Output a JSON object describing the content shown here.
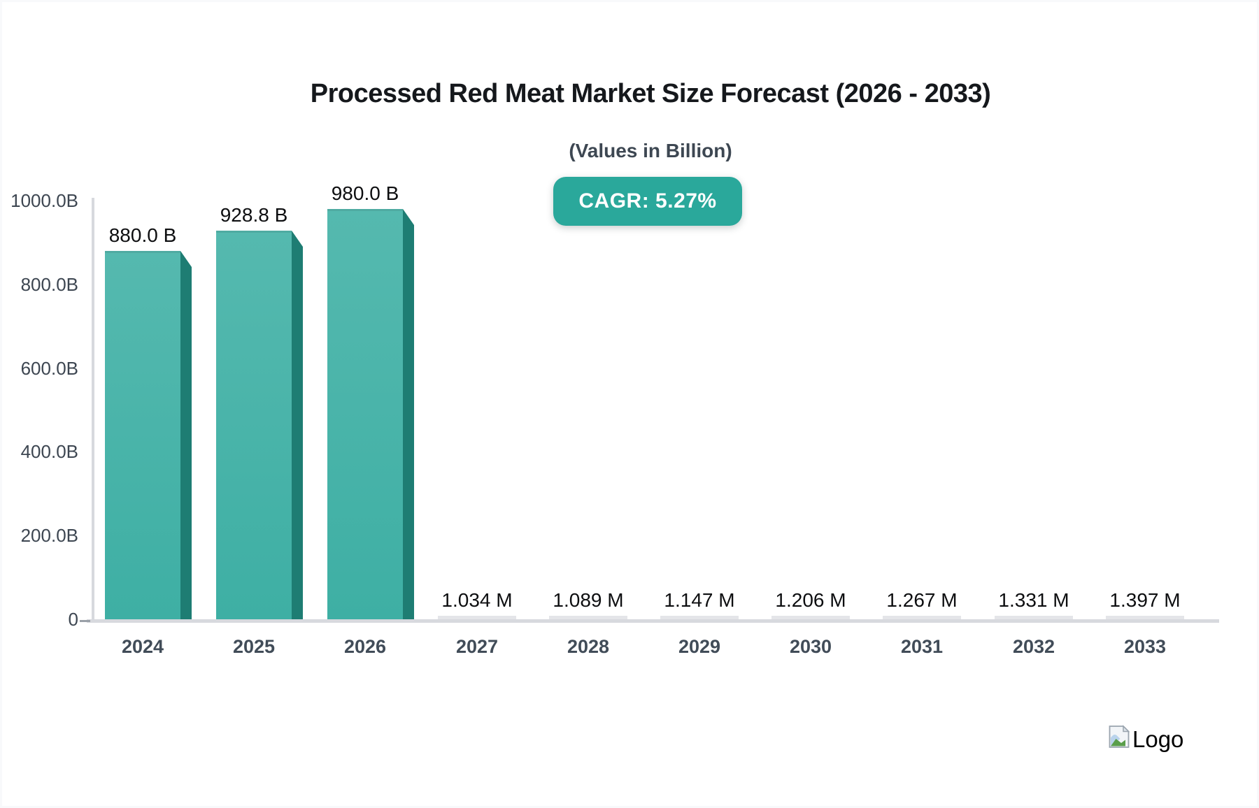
{
  "logo": {
    "alt_text": "Logo"
  },
  "chart_data": {
    "type": "bar",
    "title": "Processed Red Meat Market Size Forecast (2026 - 2033)",
    "subtitle": "(Values in Billion)",
    "annotation": "CAGR: 5.27%",
    "unit_note": "Values in Billion",
    "ylim": [
      0,
      1000
    ],
    "grid": "off",
    "legend": "none",
    "y_ticks": [
      {
        "label": "1000.0B",
        "value": 1000
      },
      {
        "label": "800.0B",
        "value": 800
      },
      {
        "label": "600.0B",
        "value": 600
      },
      {
        "label": "400.0B",
        "value": 400
      },
      {
        "label": "200.0B",
        "value": 200
      },
      {
        "label": "0",
        "value": 0
      }
    ],
    "categories": [
      "2024",
      "2025",
      "2026",
      "2027",
      "2028",
      "2029",
      "2030",
      "2031",
      "2032",
      "2033"
    ],
    "points": [
      {
        "year": "2024",
        "value": 880.0,
        "unit": "B",
        "display": "880.0 B"
      },
      {
        "year": "2025",
        "value": 928.8,
        "unit": "B",
        "display": "928.8 B"
      },
      {
        "year": "2026",
        "value": 980.0,
        "unit": "B",
        "display": "980.0 B"
      },
      {
        "year": "2027",
        "value": 1.034,
        "unit": "M",
        "display": "1.034 M"
      },
      {
        "year": "2028",
        "value": 1.089,
        "unit": "M",
        "display": "1.089 M"
      },
      {
        "year": "2029",
        "value": 1.147,
        "unit": "M",
        "display": "1.147 M"
      },
      {
        "year": "2030",
        "value": 1.206,
        "unit": "M",
        "display": "1.206 M"
      },
      {
        "year": "2031",
        "value": 1.267,
        "unit": "M",
        "display": "1.267 M"
      },
      {
        "year": "2032",
        "value": 1.331,
        "unit": "M",
        "display": "1.331 M"
      },
      {
        "year": "2033",
        "value": 1.397,
        "unit": "M",
        "display": "1.397 M"
      }
    ],
    "colors": {
      "bar_face_top": "#55b9af",
      "bar_face_bottom": "#3eafa4",
      "bar_side": "#1e7d73",
      "tiny_bar": "#e4e5e9",
      "badge": "#2aa89b",
      "axis_line": "#d7d9de"
    }
  }
}
